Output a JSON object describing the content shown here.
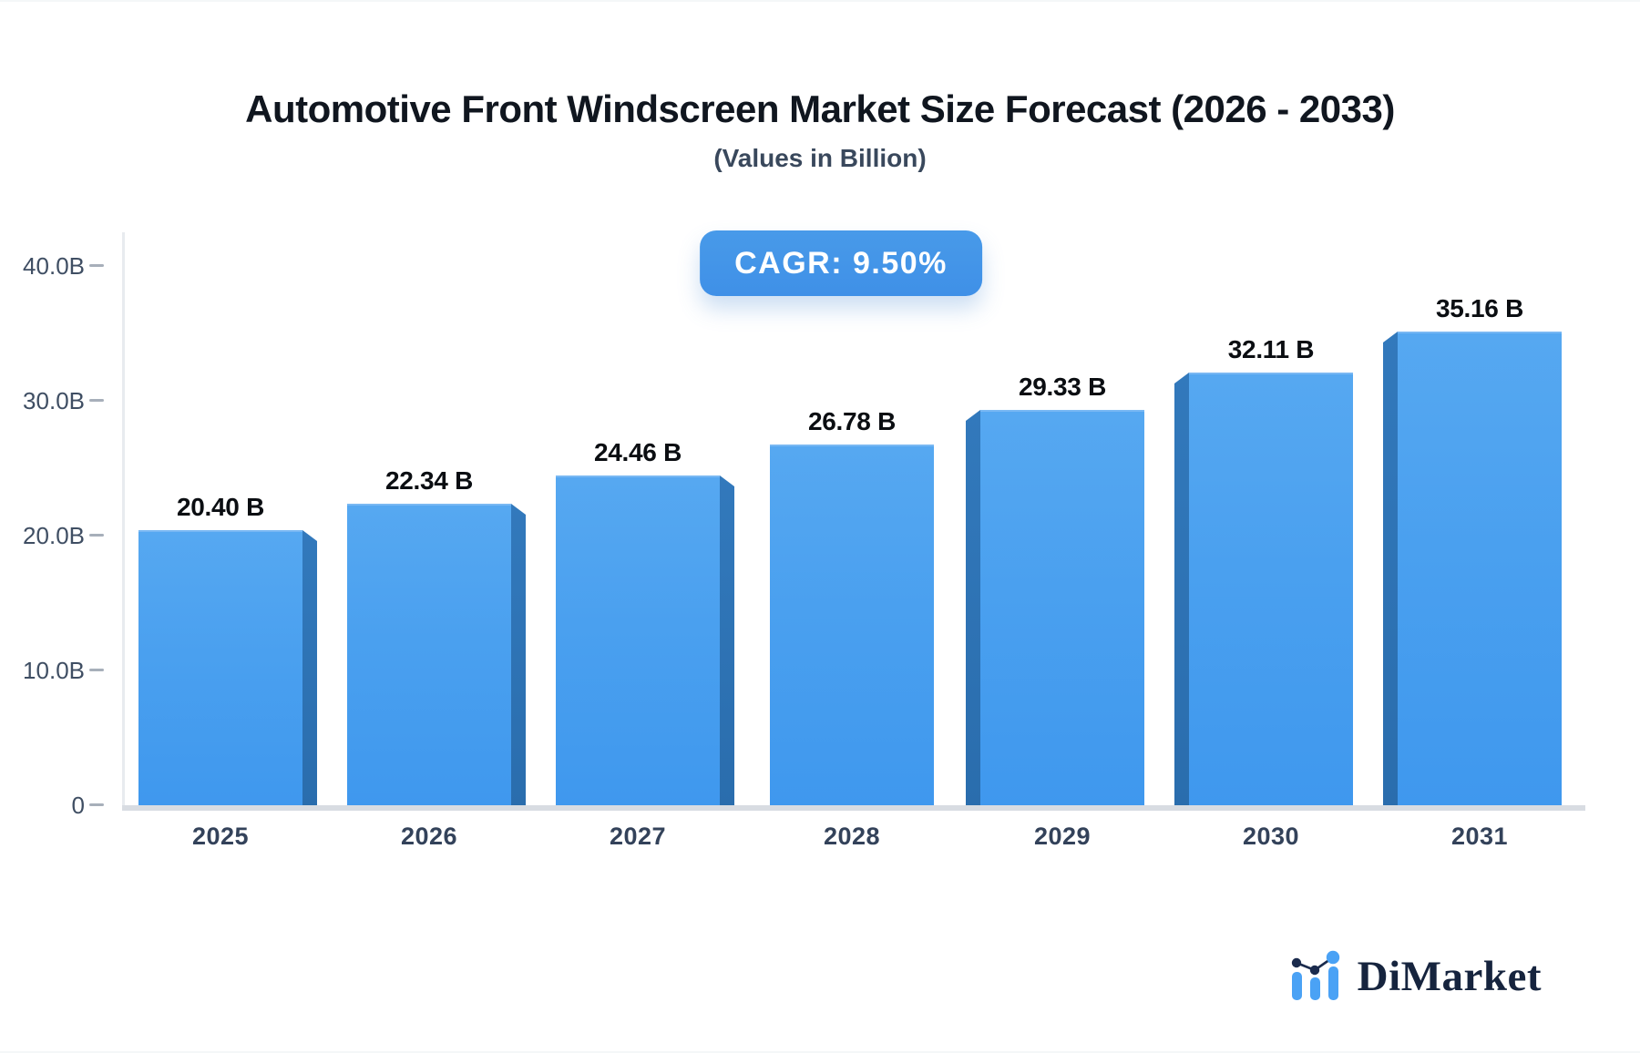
{
  "title": "Automotive Front Windscreen Market Size Forecast (2026 - 2033)",
  "subtitle": "(Values in Billion)",
  "badge": {
    "label": "CAGR: 9.50%"
  },
  "chart_data": {
    "type": "bar",
    "categories": [
      "2025",
      "2026",
      "2027",
      "2028",
      "2029",
      "2030",
      "2031"
    ],
    "values": [
      20.4,
      22.34,
      24.46,
      26.78,
      29.33,
      32.11,
      35.16
    ],
    "value_labels": [
      "20.40 B",
      "22.34 B",
      "24.46 B",
      "26.78 B",
      "29.33 B",
      "32.11 B",
      "35.16 B"
    ],
    "y_ticks": [
      "0",
      "10.0B",
      "20.0B",
      "30.0B",
      "40.0B"
    ],
    "ylim": [
      0,
      40
    ],
    "xlabel": "",
    "ylabel": "",
    "grid": false,
    "legend": "none",
    "bar_color": "#4aa0ef",
    "bar_side_color": "#2d73b5"
  },
  "logo": {
    "text": "DiMarket",
    "accent_color": "#4aa2f5",
    "navy_color": "#1b2b4d"
  },
  "colors": {
    "badge_blue": "#4295e8",
    "baseline_gray": "#d8dce2",
    "axis_gray": "#e8ebef"
  }
}
